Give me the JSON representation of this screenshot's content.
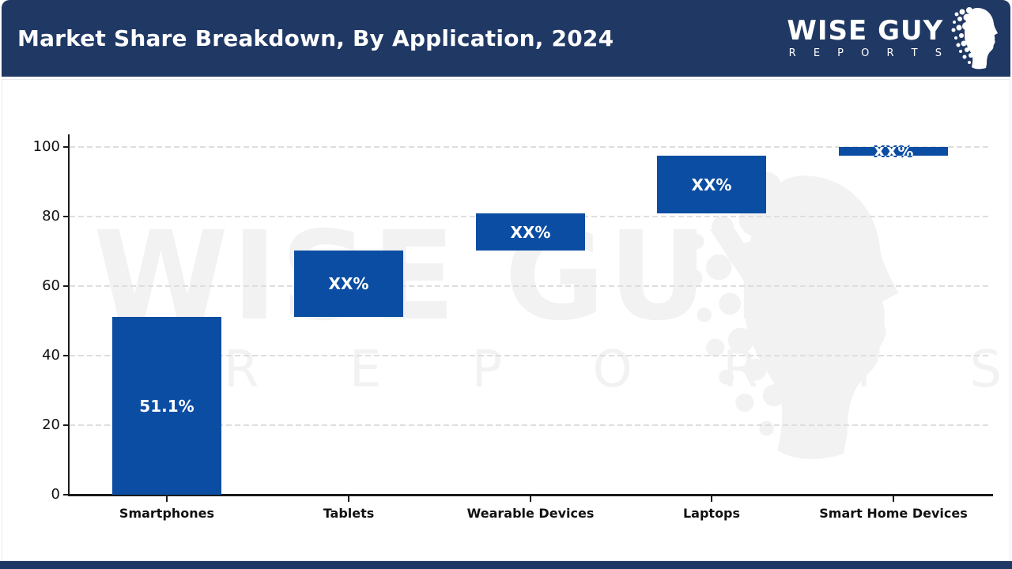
{
  "header": {
    "title": "Market Share Breakdown, By Application, 2024",
    "logo": {
      "line1": "WISE GUY",
      "line2": "R E P O R T S"
    }
  },
  "watermark": {
    "line1": "WISE GUY",
    "line2": "R E P O R T S"
  },
  "colors": {
    "header_bg": "#203864",
    "footer_bg": "#203864",
    "bar": "#0b4da2",
    "gridline": "#dedede",
    "watermark": "#f2f2f2",
    "axis_text": "#111111",
    "bar_label": "#ffffff"
  },
  "chart_data": {
    "type": "bar",
    "subtype": "waterfall",
    "title": "Market Share Breakdown, By Application, 2024",
    "categories": [
      "Smartphones",
      "Tablets",
      "Wearable Devices",
      "Laptops",
      "Smart Home Devices"
    ],
    "segments": [
      {
        "category": "Smartphones",
        "start": 0,
        "end": 51.1,
        "label": "51.1%"
      },
      {
        "category": "Tablets",
        "start": 51.1,
        "end": 70.2,
        "label": "XX%"
      },
      {
        "category": "Wearable Devices",
        "start": 70.2,
        "end": 80.9,
        "label": "XX%"
      },
      {
        "category": "Laptops",
        "start": 80.9,
        "end": 97.5,
        "label": "XX%"
      },
      {
        "category": "Smart Home Devices",
        "start": 97.5,
        "end": 100,
        "label": "XX%"
      }
    ],
    "xlabel": "",
    "ylabel": "",
    "y_ticks": [
      0,
      20,
      40,
      60,
      80,
      100
    ],
    "ylim": [
      0,
      103.6
    ],
    "grid": "horizontal-dashed",
    "legend": "none"
  }
}
